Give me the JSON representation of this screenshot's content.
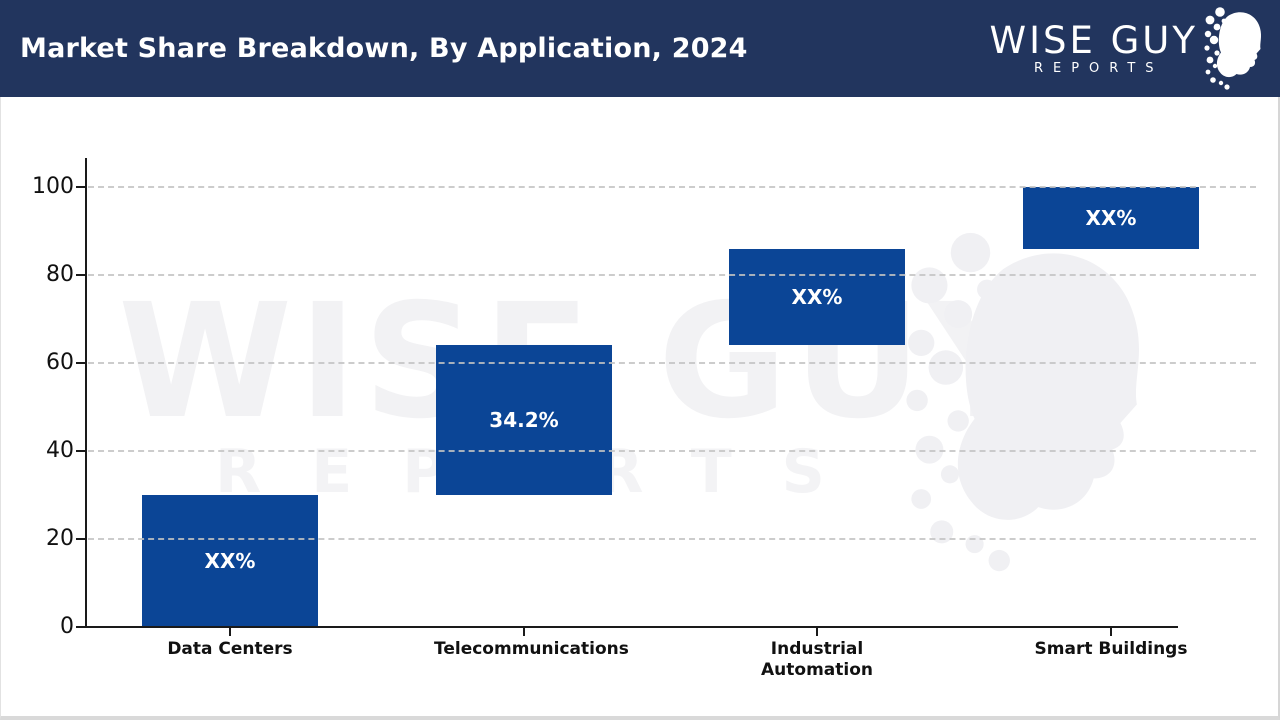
{
  "header": {
    "title": "Market Share Breakdown, By Application, 2024",
    "bg_color": "#22355e",
    "logo": {
      "line1": "WISE GUY",
      "line2": "REPORTS"
    }
  },
  "watermark": {
    "line1": "WISE GUY",
    "line2": "REPORTS"
  },
  "chart_data": {
    "type": "bar",
    "subtype": "waterfall-floating-bars",
    "title": "Market Share Breakdown, By Application, 2024",
    "categories": [
      "Data Centers",
      "Telecommunications",
      "Industrial Automation",
      "Smart Buildings"
    ],
    "series": [
      {
        "name": "Market Share",
        "segments": [
          {
            "category": "Data Centers",
            "start": 0,
            "end": 30,
            "label": "XX%"
          },
          {
            "category": "Telecommunications",
            "start": 30,
            "end": 64.2,
            "label": "34.2%"
          },
          {
            "category": "Industrial Automation",
            "start": 64.2,
            "end": 85.8,
            "label": "XX%"
          },
          {
            "category": "Smart Buildings",
            "start": 85.8,
            "end": 100,
            "label": "XX%"
          }
        ]
      }
    ],
    "xlabel": "",
    "ylabel": "",
    "ylim": [
      0,
      100
    ],
    "yticks": [
      0,
      20,
      40,
      60,
      80,
      100
    ],
    "grid": "horizontal-dashed",
    "legend": "none",
    "bar_color": "#0b4596",
    "bar_label_color": "#ffffff",
    "axis_color": "#1a1a1a",
    "grid_color": "#c9c9c9"
  }
}
